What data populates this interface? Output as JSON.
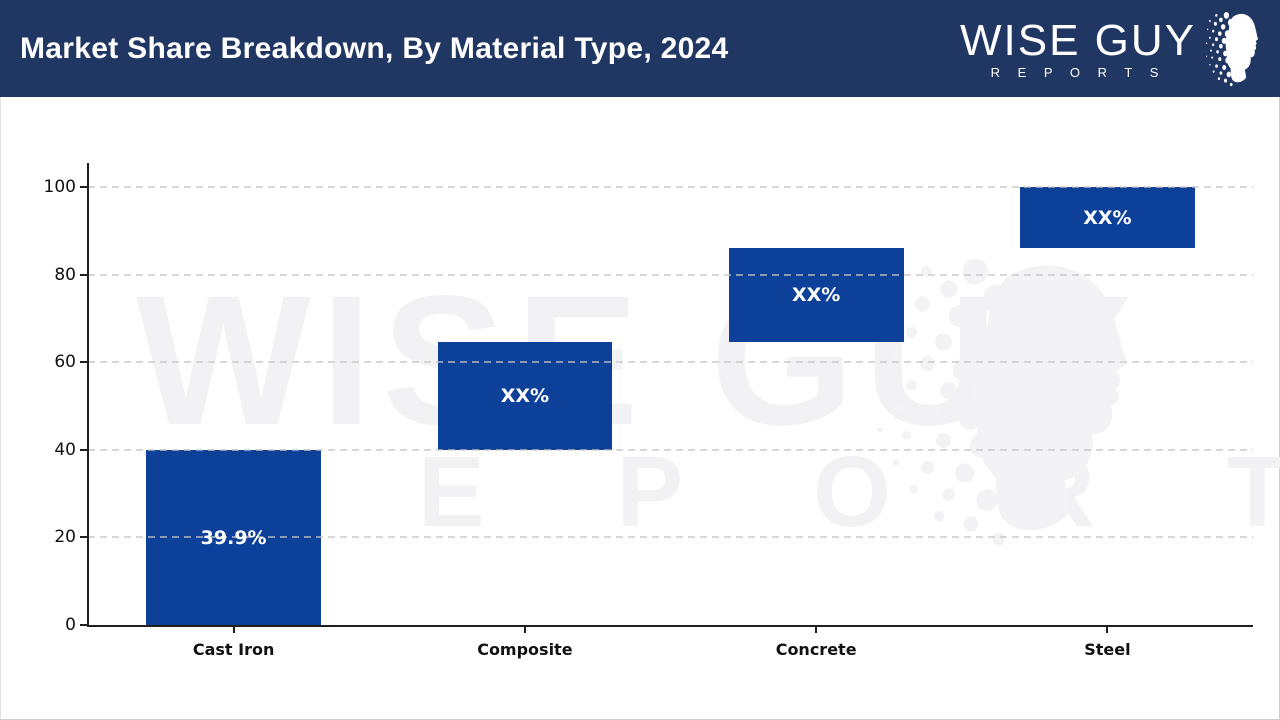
{
  "header": {
    "title": "Market Share Breakdown, By Material Type, 2024",
    "logo": {
      "line1": "WISE GUY",
      "line2": "R E P O R T S",
      "icon": "dotted-head-icon"
    },
    "bg_color": "#213763"
  },
  "watermark": {
    "line1": "WISE GUY",
    "line2": "R E P O R T S",
    "color": "#f2f2f4"
  },
  "chart_data": {
    "type": "bar",
    "subtype": "floating-segment-waterfall",
    "title": "Market Share Breakdown, By Material Type, 2024",
    "categories": [
      "Cast Iron",
      "Composite",
      "Concrete",
      "Steel"
    ],
    "series": [
      {
        "name": "Market share (%)",
        "segments": [
          {
            "category": "Cast Iron",
            "start": 0,
            "end": 39.9,
            "label": "39.9%"
          },
          {
            "category": "Composite",
            "start": 39.9,
            "end": 64.6,
            "label": "XX%"
          },
          {
            "category": "Concrete",
            "start": 64.6,
            "end": 86.0,
            "label": "XX%"
          },
          {
            "category": "Steel",
            "start": 86.0,
            "end": 100.0,
            "label": "XX%"
          }
        ]
      }
    ],
    "xlabel": "",
    "ylabel": "",
    "ylim": [
      0,
      100
    ],
    "yticks": [
      0,
      20,
      40,
      60,
      80,
      100
    ],
    "grid": {
      "axis": "y",
      "style": "dashed",
      "color": "#c6c6c6"
    },
    "legend": "none",
    "bar_color": "#0d4199",
    "bar_label_color": "#ffffff"
  }
}
